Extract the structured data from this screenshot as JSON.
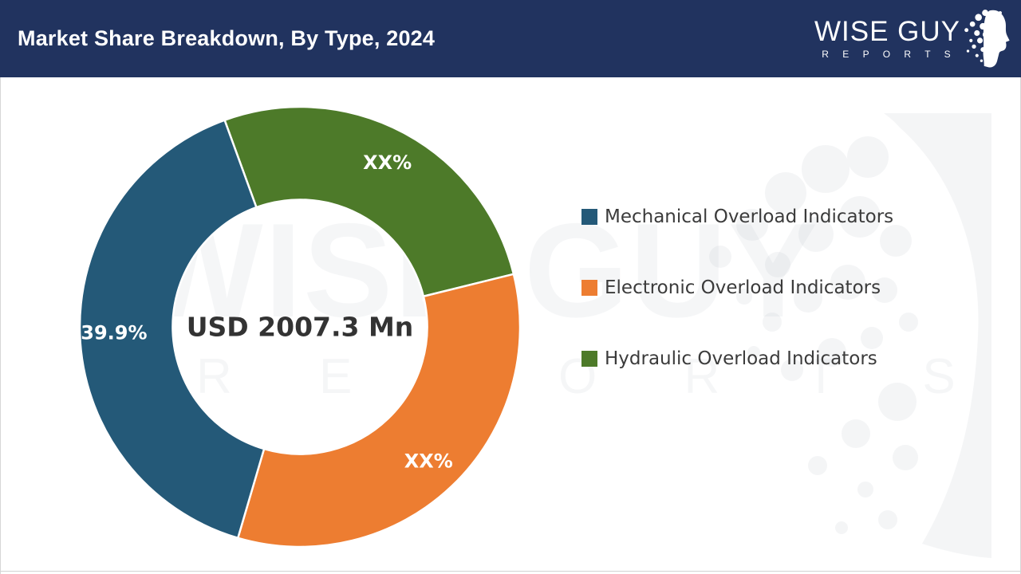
{
  "header": {
    "title": "Market Share Breakdown, By Type, 2024",
    "logo": {
      "name": "WISE GUY",
      "sub": "R E P O R T S"
    }
  },
  "watermark": {
    "line1": "WISE GUY",
    "line2": "R E P O R T S"
  },
  "chart_data": {
    "type": "pie",
    "subtype": "donut",
    "title": "Market Share Breakdown, By Type, 2024",
    "center_label": "USD 2007.3 Mn",
    "unit": "percent of market share",
    "series": [
      {
        "name": "Mechanical Overload Indicators",
        "value": 39.9,
        "label": "39.9%",
        "color": "#245978"
      },
      {
        "name": "Electronic Overload Indicators",
        "value": 33.4,
        "label": "XX%",
        "color": "#ed7d31"
      },
      {
        "name": "Hydraulic Overload Indicators",
        "value": 26.7,
        "label": "XX%",
        "color": "#4d7a29"
      }
    ],
    "layout": {
      "start_angle_deg": -20,
      "draw_order": [
        2,
        1,
        0
      ],
      "donut_hole_ratio": 0.578,
      "label_radius_ratio": 0.845,
      "legend_position": "right",
      "segment_gap_color": "#ffffff"
    },
    "colors": {
      "header_background": "#21335f",
      "blue": "#245978",
      "orange": "#ed7d31",
      "green": "#4d7a29",
      "center_text": "#333333",
      "legend_text": "#3b3b3b"
    }
  }
}
